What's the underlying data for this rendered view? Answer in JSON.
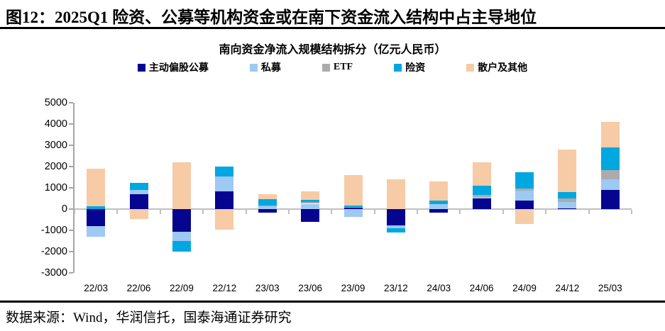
{
  "page": {
    "title": "图12：2025Q1 险资、公募等机构资金或在南下资金流入结构中占主导地位",
    "footer": "数据来源：Wind，华润信托，国泰海通证券研究"
  },
  "chart_data": {
    "type": "bar",
    "stacked": true,
    "title": "南向资金净流入规模结构拆分（亿元人民币）",
    "unit": "亿元人民币",
    "categories": [
      "22/03",
      "22/06",
      "22/09",
      "22/12",
      "23/03",
      "23/06",
      "23/09",
      "23/12",
      "24/03",
      "24/06",
      "24/09",
      "24/12",
      "25/03"
    ],
    "series": [
      {
        "name": "主动偏股公募",
        "color": "#05058F",
        "values": [
          -800,
          700,
          -1050,
          850,
          -150,
          -600,
          60,
          -750,
          -150,
          500,
          400,
          50,
          900
        ]
      },
      {
        "name": "私募",
        "color": "#9DC9F3",
        "values": [
          -500,
          190,
          -450,
          700,
          120,
          250,
          -350,
          -150,
          250,
          80,
          480,
          300,
          500
        ]
      },
      {
        "name": "ETF",
        "color": "#ABABAB",
        "values": [
          0,
          0,
          0,
          0,
          60,
          80,
          40,
          0,
          0,
          80,
          80,
          150,
          450
        ]
      },
      {
        "name": "险资",
        "color": "#00A7E1",
        "values": [
          150,
          340,
          -500,
          450,
          280,
          100,
          80,
          -200,
          150,
          440,
          760,
          300,
          1050
        ]
      },
      {
        "name": "散户及其他",
        "color": "#F6CBA6",
        "values": [
          1750,
          -450,
          2200,
          -950,
          240,
          400,
          1420,
          1400,
          900,
          1100,
          -700,
          2000,
          1200
        ]
      }
    ],
    "ylim": [
      -3000,
      5000
    ],
    "ytick_step": 1000,
    "grid": false,
    "legend_position": "top"
  }
}
